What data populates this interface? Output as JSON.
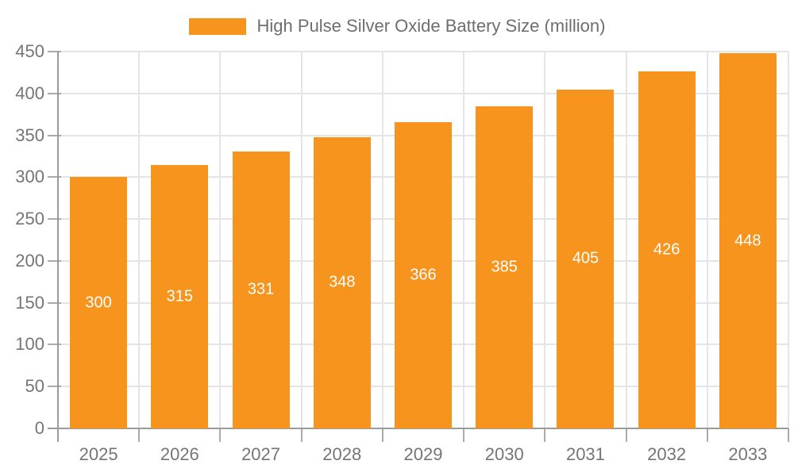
{
  "legend": {
    "label": "High Pulse Silver Oxide Battery Size (million)"
  },
  "chart_data": {
    "type": "bar",
    "title": "High Pulse Silver Oxide Battery Size (million)",
    "categories": [
      "2025",
      "2026",
      "2027",
      "2028",
      "2029",
      "2030",
      "2031",
      "2032",
      "2033"
    ],
    "values": [
      300,
      315,
      331,
      348,
      366,
      385,
      405,
      426,
      448
    ],
    "series": [
      {
        "name": "High Pulse Silver Oxide Battery Size (million)",
        "values": [
          300,
          315,
          331,
          348,
          366,
          385,
          405,
          426,
          448
        ]
      }
    ],
    "xlabel": "",
    "ylabel": "",
    "ylim": [
      0,
      450
    ],
    "y_tick_step": 50,
    "y_ticks": [
      0,
      50,
      100,
      150,
      200,
      250,
      300,
      350,
      400,
      450
    ],
    "grid": true,
    "legend_position": "top",
    "bar_labels_visible": true
  },
  "colors": {
    "bar": "#F7941E",
    "bar_label": "#FFFFFF",
    "axis": "#9B9B9B",
    "gridline": "#E5E5E5",
    "tick": "#ABABAB",
    "axis_text": "#757575",
    "legend_text": "#6E6E6E",
    "background": "#FFFFFF"
  }
}
